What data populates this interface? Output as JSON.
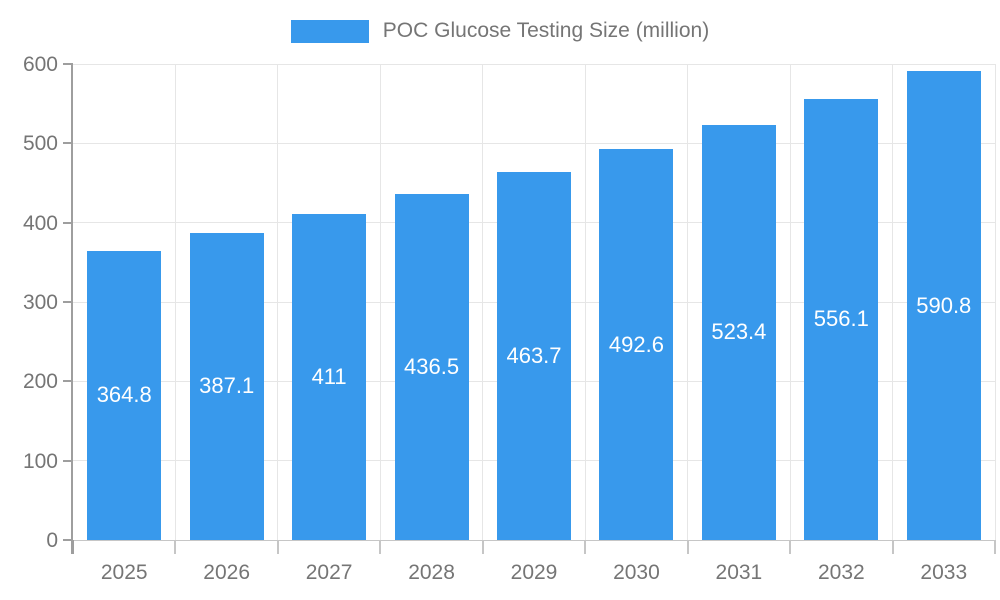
{
  "legend": {
    "label": "POC Glucose Testing Size (million)"
  },
  "colors": {
    "bar": "#3899EC",
    "bar_label": "#FFFFFF",
    "axis_line": "#9E9E9E",
    "grid_line": "#E6E6E6",
    "zero_line": "#C6C6C6",
    "boundary_tick": "#C6C6C6",
    "tick_text": "#757575"
  },
  "chart_data": {
    "type": "bar",
    "title": "POC Glucose Testing Size (million)",
    "xlabel": "",
    "ylabel": "",
    "categories": [
      "2025",
      "2026",
      "2027",
      "2028",
      "2029",
      "2030",
      "2031",
      "2032",
      "2033"
    ],
    "values": [
      364.8,
      387.1,
      411,
      436.5,
      463.7,
      492.6,
      523.4,
      556.1,
      590.8
    ],
    "value_labels": [
      "364.8",
      "387.1",
      "411",
      "436.5",
      "463.7",
      "492.6",
      "523.4",
      "556.1",
      "590.8"
    ],
    "ylim": [
      0,
      600
    ],
    "y_ticks": [
      0,
      100,
      200,
      300,
      400,
      500,
      600
    ],
    "grid": true,
    "legend_position": "top",
    "legend_entries": [
      "POC Glucose Testing Size (million)"
    ]
  }
}
